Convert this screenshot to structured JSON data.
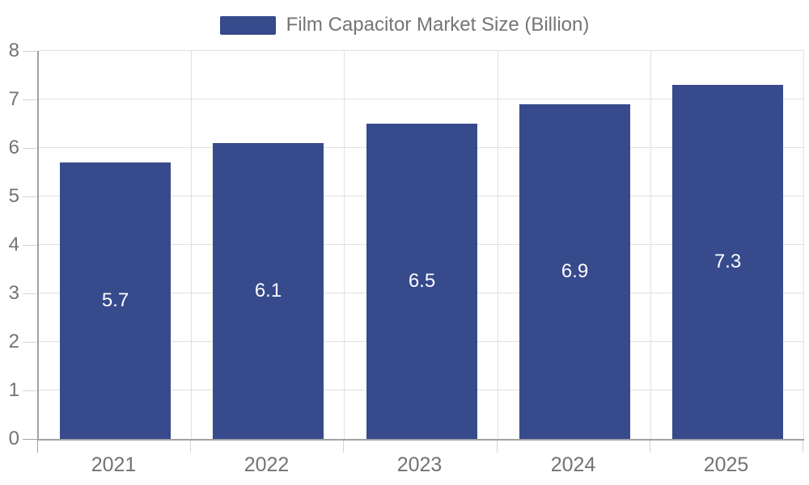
{
  "legend": {
    "label": "Film Capacitor Market Size (Billion)"
  },
  "colors": {
    "bar": "#364A8C",
    "grid": "#e0e0e0",
    "axis": "#a2a2a2",
    "tick": "#d4d4d4",
    "tick_label": "#737373",
    "value_label": "#ffffff",
    "background": "#ffffff"
  },
  "chart_data": {
    "type": "bar",
    "title": "",
    "xlabel": "",
    "ylabel": "",
    "series_name": "Film Capacitor Market Size (Billion)",
    "categories": [
      "2021",
      "2022",
      "2023",
      "2024",
      "2025"
    ],
    "values": [
      5.7,
      6.1,
      6.5,
      6.9,
      7.3
    ],
    "value_labels": [
      "5.7",
      "6.1",
      "6.5",
      "6.9",
      "7.3"
    ],
    "ylim": [
      0,
      8
    ],
    "ytick_step": 1,
    "ytick_labels": [
      "0",
      "1",
      "2",
      "3",
      "4",
      "5",
      "6",
      "7",
      "8"
    ],
    "grid": true,
    "legend_position": "top"
  }
}
